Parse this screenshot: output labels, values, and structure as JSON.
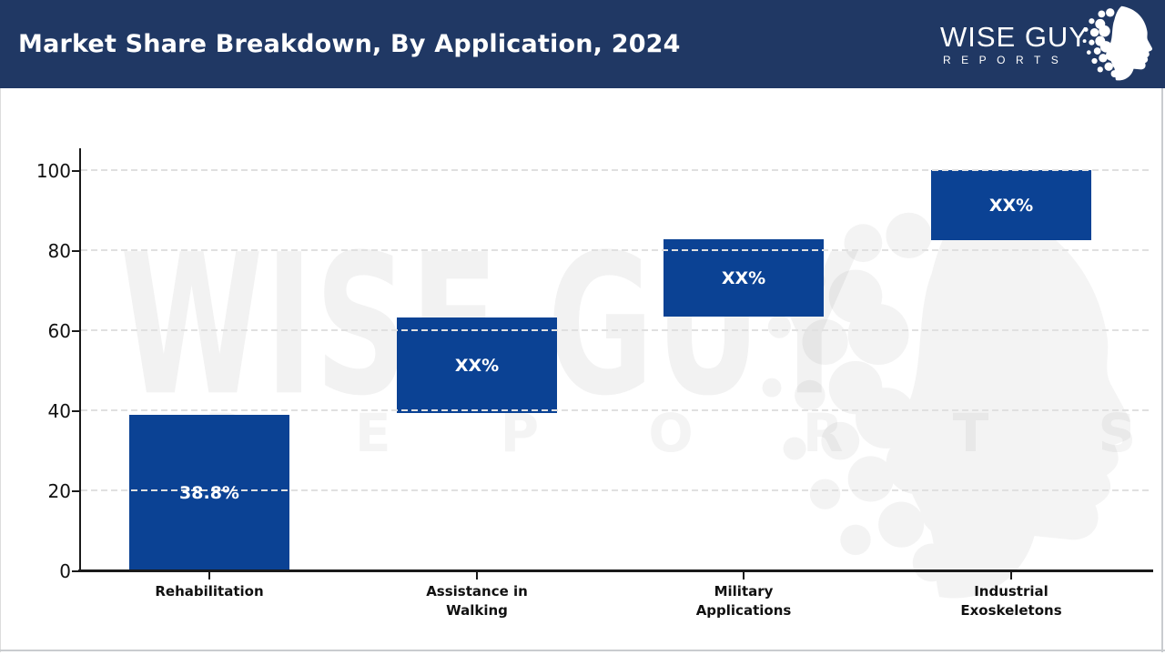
{
  "header": {
    "title": "Market Share Breakdown, By Application, 2024",
    "bg_color": "#203864",
    "logo": {
      "line1": "WISE GUY",
      "line2": "REPORTS"
    }
  },
  "watermark": {
    "line1": "WISE GUY",
    "line2": "R E P O R T S"
  },
  "chart_data": {
    "type": "bar",
    "subtype": "floating-waterfall",
    "title": "Market Share Breakdown, By Application, 2024",
    "categories": [
      "Rehabilitation",
      "Assistance in Walking",
      "Military Applications",
      "Industrial Exoskeletons"
    ],
    "category_lines": [
      [
        "Rehabilitation"
      ],
      [
        "Assistance in",
        "Walking"
      ],
      [
        "Military",
        "Applications"
      ],
      [
        "Industrial",
        "Exoskeletons"
      ]
    ],
    "bars": [
      {
        "label": "38.8%",
        "start": 0,
        "end": 38.8
      },
      {
        "label": "XX%",
        "start": 39.3,
        "end": 63.2
      },
      {
        "label": "XX%",
        "start": 63.4,
        "end": 82.7
      },
      {
        "label": "XX%",
        "start": 82.5,
        "end": 100
      }
    ],
    "ylim": [
      0,
      100
    ],
    "yticks": [
      0,
      20,
      40,
      60,
      80,
      100
    ],
    "xlabel": "",
    "ylabel": "",
    "bar_color": "#0b4294",
    "axis_color": "#1a1a1a",
    "grid": {
      "axis": "y",
      "style": "dashed",
      "color": "#e0e0e0",
      "on_top": true
    },
    "legend": "none"
  }
}
